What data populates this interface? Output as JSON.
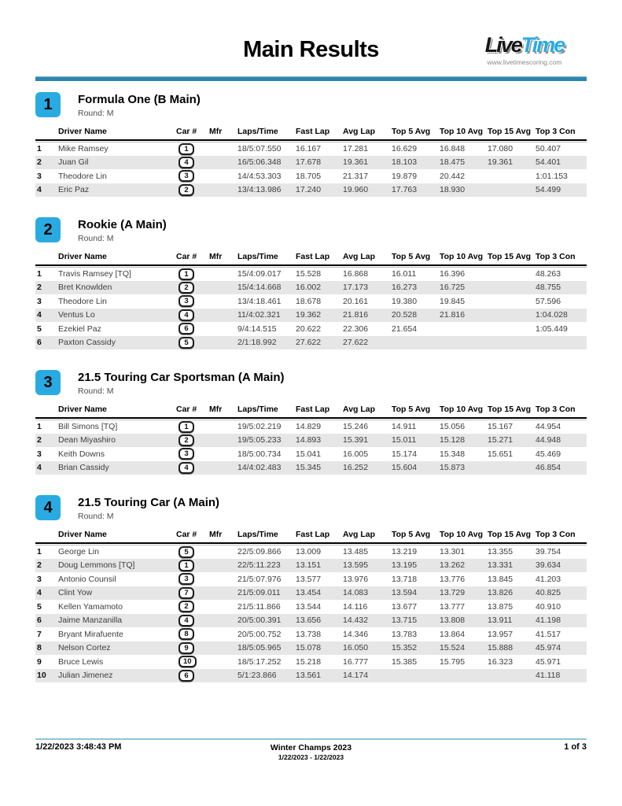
{
  "page": {
    "title": "Main Results",
    "logo": {
      "live": "Live",
      "time": "Time",
      "tagline": "www.livetimescoring.com"
    },
    "footer": {
      "timestamp": "1/22/2023 3:48:43 PM",
      "event": "Winter Champs 2023",
      "date_range": "1/22/2023 - 1/22/2023",
      "page_info": "1 of 3"
    }
  },
  "colors": {
    "accent_blue": "#29abe2",
    "header_rule": "#2e86ad",
    "footer_rule": "#8fc3dd",
    "alt_row": "#e6e6e6"
  },
  "table_headers": [
    "Driver Name",
    "Car #",
    "Mfr",
    "Laps/Time",
    "Fast Lap",
    "Avg Lap",
    "Top 5 Avg",
    "Top 10 Avg",
    "Top 15 Avg",
    "Top 3 Con"
  ],
  "sections": [
    {
      "number": "1",
      "title": "Formula One (B Main)",
      "round": "Round: M",
      "rows": [
        {
          "pos": "1",
          "driver": "Mike Ramsey",
          "car": "1",
          "mfr": "",
          "laps_time": "18/5:07.550",
          "fast_lap": "16.167",
          "avg_lap": "17.281",
          "top5": "16.629",
          "top10": "16.848",
          "top15": "17.080",
          "top3con": "50.407"
        },
        {
          "pos": "2",
          "driver": "Juan Gil",
          "car": "4",
          "mfr": "",
          "laps_time": "16/5:06.348",
          "fast_lap": "17.678",
          "avg_lap": "19.361",
          "top5": "18.103",
          "top10": "18.475",
          "top15": "19.361",
          "top3con": "54.401"
        },
        {
          "pos": "3",
          "driver": "Theodore Lin",
          "car": "3",
          "mfr": "",
          "laps_time": "14/4:53.303",
          "fast_lap": "18.705",
          "avg_lap": "21.317",
          "top5": "19.879",
          "top10": "20.442",
          "top15": "",
          "top3con": "1:01.153"
        },
        {
          "pos": "4",
          "driver": "Eric Paz",
          "car": "2",
          "mfr": "",
          "laps_time": "13/4:13.986",
          "fast_lap": "17.240",
          "avg_lap": "19.960",
          "top5": "17.763",
          "top10": "18.930",
          "top15": "",
          "top3con": "54.499"
        }
      ]
    },
    {
      "number": "2",
      "title": "Rookie (A Main)",
      "round": "Round: M",
      "rows": [
        {
          "pos": "1",
          "driver": "Travis Ramsey [TQ]",
          "car": "1",
          "mfr": "",
          "laps_time": "15/4:09.017",
          "fast_lap": "15.528",
          "avg_lap": "16.868",
          "top5": "16.011",
          "top10": "16.396",
          "top15": "",
          "top3con": "48.263"
        },
        {
          "pos": "2",
          "driver": "Bret Knowlden",
          "car": "2",
          "mfr": "",
          "laps_time": "15/4:14.668",
          "fast_lap": "16.002",
          "avg_lap": "17.173",
          "top5": "16.273",
          "top10": "16.725",
          "top15": "",
          "top3con": "48.755"
        },
        {
          "pos": "3",
          "driver": "Theodore Lin",
          "car": "3",
          "mfr": "",
          "laps_time": "13/4:18.461",
          "fast_lap": "18.678",
          "avg_lap": "20.161",
          "top5": "19.380",
          "top10": "19.845",
          "top15": "",
          "top3con": "57.596"
        },
        {
          "pos": "4",
          "driver": "Ventus Lo",
          "car": "4",
          "mfr": "",
          "laps_time": "11/4:02.321",
          "fast_lap": "19.362",
          "avg_lap": "21.816",
          "top5": "20.528",
          "top10": "21.816",
          "top15": "",
          "top3con": "1:04.028"
        },
        {
          "pos": "5",
          "driver": "Ezekiel Paz",
          "car": "6",
          "mfr": "",
          "laps_time": "9/4:14.515",
          "fast_lap": "20.622",
          "avg_lap": "22.306",
          "top5": "21.654",
          "top10": "",
          "top15": "",
          "top3con": "1:05.449"
        },
        {
          "pos": "6",
          "driver": "Paxton Cassidy",
          "car": "5",
          "mfr": "",
          "laps_time": "2/1:18.992",
          "fast_lap": "27.622",
          "avg_lap": "27.622",
          "top5": "",
          "top10": "",
          "top15": "",
          "top3con": ""
        }
      ]
    },
    {
      "number": "3",
      "title": "21.5 Touring Car Sportsman (A Main)",
      "round": "Round: M",
      "rows": [
        {
          "pos": "1",
          "driver": "Bill Simons [TQ]",
          "car": "1",
          "mfr": "",
          "laps_time": "19/5:02.219",
          "fast_lap": "14.829",
          "avg_lap": "15.246",
          "top5": "14.911",
          "top10": "15.056",
          "top15": "15.167",
          "top3con": "44.954"
        },
        {
          "pos": "2",
          "driver": "Dean Miyashiro",
          "car": "2",
          "mfr": "",
          "laps_time": "19/5:05.233",
          "fast_lap": "14.893",
          "avg_lap": "15.391",
          "top5": "15.011",
          "top10": "15.128",
          "top15": "15.271",
          "top3con": "44.948"
        },
        {
          "pos": "3",
          "driver": "Keith Downs",
          "car": "3",
          "mfr": "",
          "laps_time": "18/5:00.734",
          "fast_lap": "15.041",
          "avg_lap": "16.005",
          "top5": "15.174",
          "top10": "15.348",
          "top15": "15.651",
          "top3con": "45.469"
        },
        {
          "pos": "4",
          "driver": "Brian Cassidy",
          "car": "4",
          "mfr": "",
          "laps_time": "14/4:02.483",
          "fast_lap": "15.345",
          "avg_lap": "16.252",
          "top5": "15.604",
          "top10": "15.873",
          "top15": "",
          "top3con": "46.854"
        }
      ]
    },
    {
      "number": "4",
      "title": "21.5 Touring Car  (A Main)",
      "round": "Round: M",
      "rows": [
        {
          "pos": "1",
          "driver": "George Lin",
          "car": "5",
          "mfr": "",
          "laps_time": "22/5:09.866",
          "fast_lap": "13.009",
          "avg_lap": "13.485",
          "top5": "13.219",
          "top10": "13.301",
          "top15": "13.355",
          "top3con": "39.754"
        },
        {
          "pos": "2",
          "driver": "Doug Lemmons [TQ]",
          "car": "1",
          "mfr": "",
          "laps_time": "22/5:11.223",
          "fast_lap": "13.151",
          "avg_lap": "13.595",
          "top5": "13.195",
          "top10": "13.262",
          "top15": "13.331",
          "top3con": "39.634"
        },
        {
          "pos": "3",
          "driver": "Antonio Counsil",
          "car": "3",
          "mfr": "",
          "laps_time": "21/5:07.976",
          "fast_lap": "13.577",
          "avg_lap": "13.976",
          "top5": "13.718",
          "top10": "13.776",
          "top15": "13.845",
          "top3con": "41.203"
        },
        {
          "pos": "4",
          "driver": "Clint Yow",
          "car": "7",
          "mfr": "",
          "laps_time": "21/5:09.011",
          "fast_lap": "13.454",
          "avg_lap": "14.083",
          "top5": "13.594",
          "top10": "13.729",
          "top15": "13.826",
          "top3con": "40.825"
        },
        {
          "pos": "5",
          "driver": "Kellen Yamamoto",
          "car": "2",
          "mfr": "",
          "laps_time": "21/5:11.866",
          "fast_lap": "13.544",
          "avg_lap": "14.116",
          "top5": "13.677",
          "top10": "13.777",
          "top15": "13.875",
          "top3con": "40.910"
        },
        {
          "pos": "6",
          "driver": "Jaime Manzanilla",
          "car": "4",
          "mfr": "",
          "laps_time": "20/5:00.391",
          "fast_lap": "13.656",
          "avg_lap": "14.432",
          "top5": "13.715",
          "top10": "13.808",
          "top15": "13.911",
          "top3con": "41.198"
        },
        {
          "pos": "7",
          "driver": "Bryant Mirafuente",
          "car": "8",
          "mfr": "",
          "laps_time": "20/5:00.752",
          "fast_lap": "13.738",
          "avg_lap": "14.346",
          "top5": "13.783",
          "top10": "13.864",
          "top15": "13.957",
          "top3con": "41.517"
        },
        {
          "pos": "8",
          "driver": "Nelson Cortez",
          "car": "9",
          "mfr": "",
          "laps_time": "18/5:05.965",
          "fast_lap": "15.078",
          "avg_lap": "16.050",
          "top5": "15.352",
          "top10": "15.524",
          "top15": "15.888",
          "top3con": "45.974"
        },
        {
          "pos": "9",
          "driver": "Bruce Lewis",
          "car": "10",
          "mfr": "",
          "laps_time": "18/5:17.252",
          "fast_lap": "15.218",
          "avg_lap": "16.777",
          "top5": "15.385",
          "top10": "15.795",
          "top15": "16.323",
          "top3con": "45.971"
        },
        {
          "pos": "10",
          "driver": "Julian Jimenez",
          "car": "6",
          "mfr": "",
          "laps_time": "5/1:23.866",
          "fast_lap": "13.561",
          "avg_lap": "14.174",
          "top5": "",
          "top10": "",
          "top15": "",
          "top3con": "41.118"
        }
      ]
    }
  ]
}
